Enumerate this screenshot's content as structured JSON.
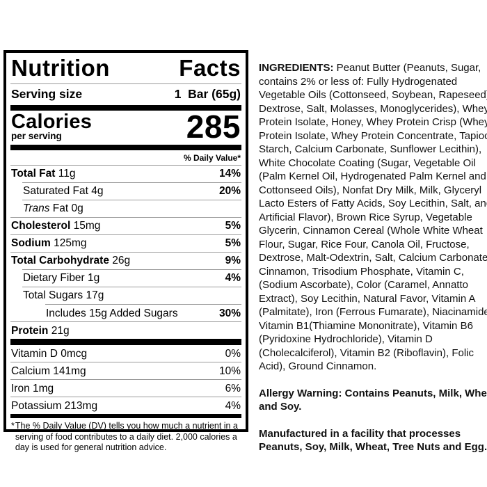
{
  "nutrition_label": {
    "title": {
      "word1": "Nutrition",
      "word2": "Facts"
    },
    "serving": {
      "label": "Serving size",
      "value": "1  Bar (65g)"
    },
    "calories": {
      "label": "Calories",
      "sub": "per serving",
      "value": "285"
    },
    "daily_value_header": "% Daily Value*",
    "nutrients": [
      {
        "bold": "Total Fat",
        "regular": " 11g",
        "dv": "14%"
      },
      {
        "regular": "Saturated Fat 4g",
        "dv": "20%"
      },
      {
        "italic": "Trans",
        "regular": " Fat 0g",
        "dv": ""
      },
      {
        "bold": "Cholesterol",
        "regular": " 15mg",
        "dv": "5%"
      },
      {
        "bold": "Sodium",
        "regular": " 125mg",
        "dv": "5%"
      },
      {
        "bold": "Total Carbohydrate",
        "regular": " 26g",
        "dv": "9%"
      },
      {
        "regular": "Dietary Fiber 1g",
        "dv": "4%"
      },
      {
        "regular": "Total Sugars 17g",
        "dv": ""
      },
      {
        "regular": "Includes 15g Added Sugars",
        "dv": "30%"
      },
      {
        "bold": "Protein",
        "regular": " 21g",
        "dv": ""
      }
    ],
    "vitamins": [
      {
        "name": "Vitamin D 0mcg",
        "dv": "0%"
      },
      {
        "name": "Calcium 141mg",
        "dv": "10%"
      },
      {
        "name": "Iron 1mg",
        "dv": "6%"
      },
      {
        "name": "Potassium 213mg",
        "dv": "4%"
      }
    ],
    "footnote_marker": "*",
    "footnote": "The % Daily Value (DV) tells you how much a nutrient in a serving of food contributes to a daily diet. 2,000 calories a day is used for general nutrition advice."
  },
  "ingredients_panel": {
    "ingredients_label": "INGREDIENTS:",
    "ingredients_text": " Peanut Butter (Peanuts, Sugar, contains 2% or less of: Fully Hydrogenated Vegetable Oils (Cottonseed, Soybean, Rapeseed), Dextrose, Salt, Molasses, Monoglycerides), Whey Protein Isolate, Honey, Whey Protein Crisp (Whey Protein Isolate, Whey Protein Concentrate, Tapioca Starch, Calcium Carbonate, Sunflower Lecithin), White Chocolate Coating (Sugar, Vegetable Oil (Palm Kernel Oil, Hydrogenated Palm Kernel and Cottonseed Oils), Nonfat Dry Milk, Milk, Glyceryl Lacto Esters of Fatty Acids, Soy Lecithin, Salt, and Artificial Flavor), Brown Rice Syrup, Vegetable Glycerin, Cinnamon Cereal (Whole White Wheat Flour, Sugar, Rice Four, Canola Oil, Fructose, Dextrose, Malt-Odextrin, Salt, Calcium Carbonate, Cinnamon, Trisodium Phosphate, Vitamin C, (Sodium Ascorbate), Color (Caramel, Annatto Extract), Soy Lecithin, Natural Favor, Vitamin A (Palmitate), Iron (Ferrous Fumarate), Niacinamide, Vitamin B1(Thiamine Mononitrate), Vitamin B6 (Pyridoxine Hydrochloride), Vitamin D (Cholecalciferol), Vitamin B2 (Riboflavin), Folic Acid), Ground Cinnamon.",
    "allergy_warning": "Allergy Warning: Contains Peanuts, Milk, Wheat and Soy.",
    "manufactured": "Manufactured in a facility that processes Peanuts, Soy, Milk, Wheat, Tree Nuts and Egg."
  },
  "colors": {
    "background": "#ffffff",
    "text": "#000000",
    "hairline": "#9a9a9a"
  }
}
